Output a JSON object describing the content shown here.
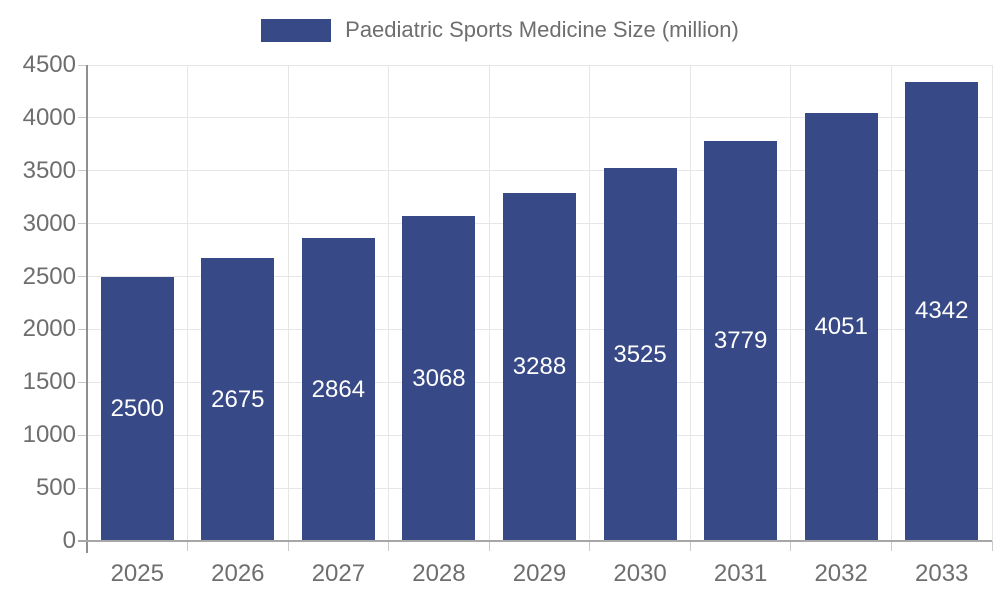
{
  "chart_data": {
    "type": "bar",
    "title": "Paediatric Sports Medicine Size (million)",
    "legend": [
      "Paediatric Sports Medicine Size (million)"
    ],
    "legend_position": "top",
    "categories": [
      "2025",
      "2026",
      "2027",
      "2028",
      "2029",
      "2030",
      "2031",
      "2032",
      "2033"
    ],
    "values": [
      2500,
      2675,
      2864,
      3068,
      3288,
      3525,
      3779,
      4051,
      4342
    ],
    "value_labels_shown": true,
    "value_label_position": "inside-center",
    "xlabel": "",
    "ylabel": "",
    "ylim": [
      0,
      4500
    ],
    "yticks": [
      0,
      500,
      1000,
      1500,
      2000,
      2500,
      3000,
      3500,
      4000,
      4500
    ],
    "grid": true,
    "colors": {
      "bar": "#374986",
      "value_label": "#ffffff",
      "axis_text": "#6e6e6e",
      "legend_text": "#6e6e6e",
      "gridline": "#e6e6e6",
      "axis_line": "#8f8f8f",
      "baseline": "#a6a6a6",
      "tick": "#c9c9c9",
      "background": "#ffffff"
    }
  }
}
